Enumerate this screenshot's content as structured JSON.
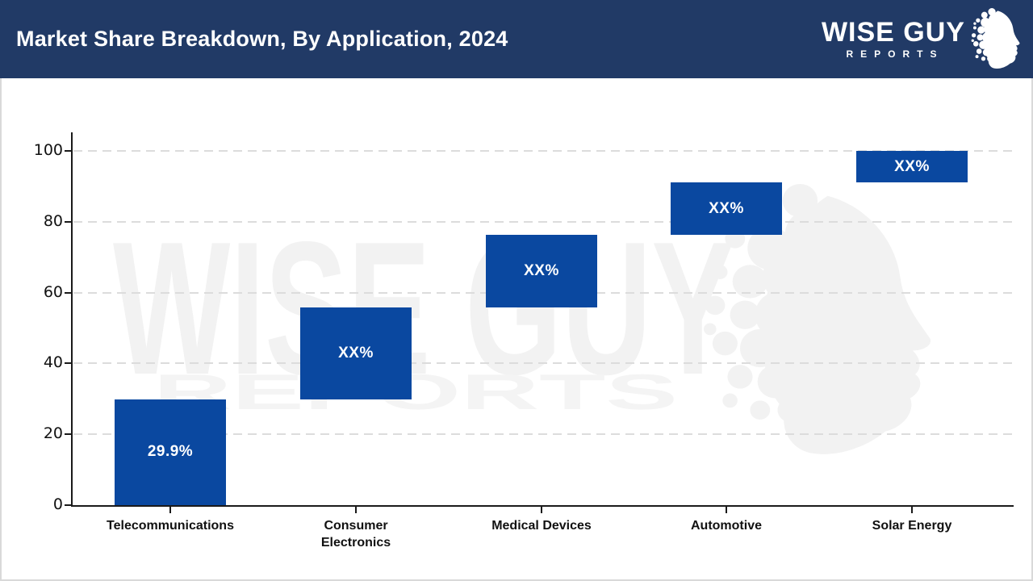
{
  "header": {
    "title": "Market Share Breakdown, By Application, 2024",
    "logo": {
      "name": "WISE GUY",
      "sub": "REPORTS"
    }
  },
  "watermark": {
    "line1": "WISE GUY",
    "line2": "REPORTS"
  },
  "colors": {
    "header_bg": "#213a66",
    "bar": "#0a48a0",
    "bar_label": "#ffffff",
    "watermark": "#f2f2f2",
    "gridline": "#dcdcdc",
    "axis": "#1a1a1a",
    "border": "#d9d9d9",
    "title_text": "#ffffff"
  },
  "chart_data": {
    "type": "bar",
    "subtype": "waterfall-style floating bars",
    "title": "Market Share Breakdown, By Application, 2024",
    "categories": [
      "Telecommunications",
      "Consumer\nElectronics",
      "Medical Devices",
      "Automotive",
      "Solar Energy"
    ],
    "segments": [
      {
        "category": "Telecommunications",
        "start": 0,
        "end": 29.9,
        "label": "29.9%"
      },
      {
        "category": "Consumer Electronics",
        "start": 29.9,
        "end": 55.8,
        "label": "XX%"
      },
      {
        "category": "Medical Devices",
        "start": 55.8,
        "end": 76.2,
        "label": "XX%"
      },
      {
        "category": "Automotive",
        "start": 76.2,
        "end": 91.1,
        "label": "XX%"
      },
      {
        "category": "Solar Energy",
        "start": 91.1,
        "end": 100,
        "label": "XX%"
      }
    ],
    "ylim": [
      0,
      100
    ],
    "yticks": [
      0,
      20,
      40,
      60,
      80,
      100
    ],
    "xlabel": "",
    "ylabel": "",
    "grid": "horizontal dashed",
    "legend": "none",
    "bar_color": "#0a48a0",
    "value_label_color": "#ffffff"
  }
}
